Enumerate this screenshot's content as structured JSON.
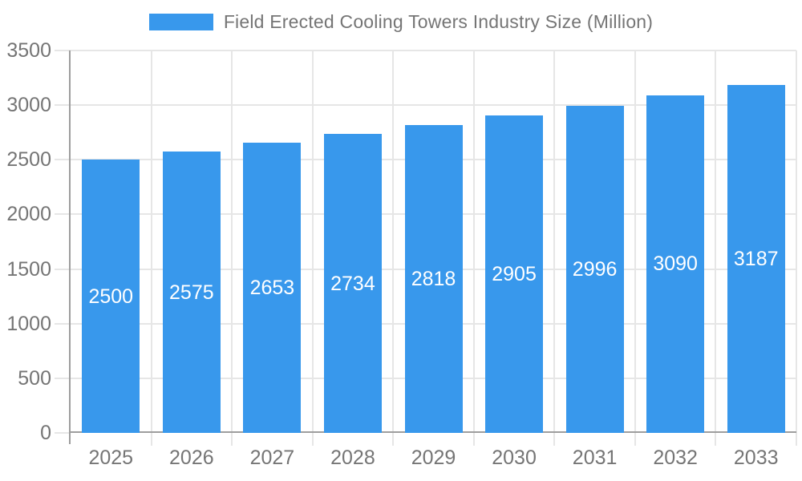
{
  "chart_data": {
    "type": "bar",
    "title": "Field Erected Cooling Towers Industry Size (Million)",
    "categories": [
      "2025",
      "2026",
      "2027",
      "2028",
      "2029",
      "2030",
      "2031",
      "2032",
      "2033"
    ],
    "values": [
      2500,
      2575,
      2653,
      2734,
      2818,
      2905,
      2996,
      3090,
      3187
    ],
    "series_name": "Field Erected Cooling Towers Industry Size (Million)",
    "xlabel": "",
    "ylabel": "",
    "ylim": [
      0,
      3500
    ],
    "ytick_step": 500,
    "ytick_labels": [
      "0",
      "500",
      "1000",
      "1500",
      "2000",
      "2500",
      "3000",
      "3500"
    ],
    "legend_position": "top",
    "grid": "on",
    "bar_labels_inside": true,
    "colors": {
      "bar": "#3898EC",
      "bar_label": "#ffffff",
      "axis_text": "#757575",
      "grid_line": "#E6E6E6",
      "axis_line": "#9E9E9E",
      "background": "#ffffff"
    }
  }
}
